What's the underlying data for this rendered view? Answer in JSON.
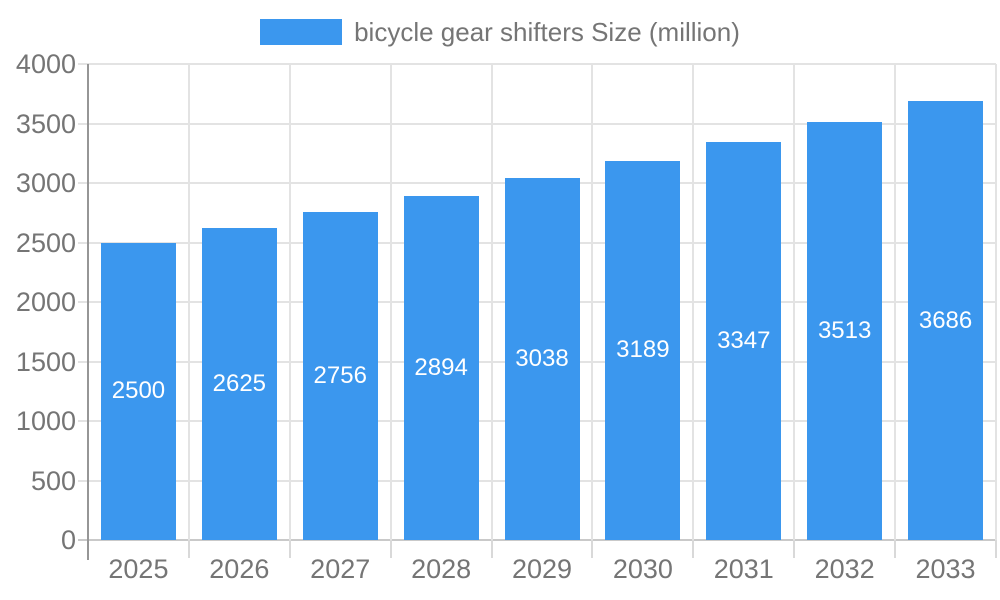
{
  "legend": {
    "label": "bicycle gear shifters Size (million)"
  },
  "chart_data": {
    "type": "bar",
    "title": "",
    "categories": [
      "2025",
      "2026",
      "2027",
      "2028",
      "2029",
      "2030",
      "2031",
      "2032",
      "2033"
    ],
    "values": [
      2500,
      2625,
      2756,
      2894,
      3038,
      3189,
      3347,
      3513,
      3686
    ],
    "series": [
      {
        "name": "bicycle gear shifters Size (million)",
        "values": [
          2500,
          2625,
          2756,
          2894,
          3038,
          3189,
          3347,
          3513,
          3686
        ]
      }
    ],
    "xlabel": "",
    "ylabel": "",
    "ylim": [
      0,
      4000
    ],
    "ytick_step": 500,
    "yticks": [
      0,
      500,
      1000,
      1500,
      2000,
      2500,
      3000,
      3500,
      4000
    ],
    "grid": true,
    "legend_position": "top-center",
    "bar_labels_visible": true,
    "bar_label_position": "center",
    "colors": {
      "bar": "#3b97ee",
      "bar_label": "#ffffff",
      "axis_text": "#757575",
      "gridline": "#e3e3e3",
      "baseline": "#c9c9c9",
      "axis_line": "#969696",
      "tick": "#d9d9d9",
      "background": "#ffffff"
    }
  }
}
